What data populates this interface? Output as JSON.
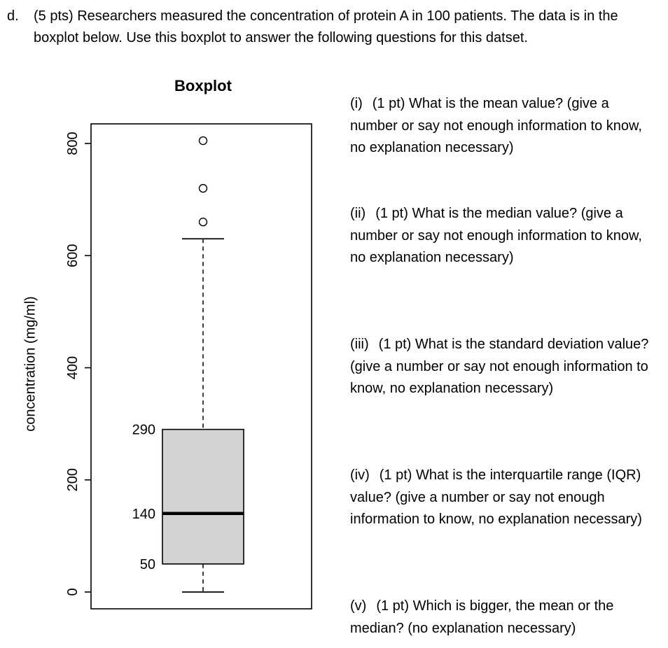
{
  "header": {
    "item_label": "d.",
    "text": "(5 pts) Researchers measured the concentration of protein A in 100 patients. The data is in the boxplot below. Use this boxplot to answer the following questions for this datset."
  },
  "questions": [
    {
      "label": "(i)",
      "text": "(1 pt) What is the mean value? (give a number or say not enough information to know, no explanation necessary)"
    },
    {
      "label": "(ii)",
      "text": "(1 pt) What is the median value? (give a number or say not enough information to know, no explanation necessary)"
    },
    {
      "label": "(iii)",
      "text": "(1 pt) What is the standard deviation value? (give a number or say not enough information to know, no explanation necessary)"
    },
    {
      "label": "(iv)",
      "text": "(1 pt) What is the interquartile range (IQR) value? (give a number or say not enough information to know, no explanation necessary)"
    },
    {
      "label": "(v)",
      "text": "(1 pt) Which is bigger, the mean or the median? (no explanation necessary)"
    }
  ],
  "chart_data": {
    "type": "boxplot",
    "title": "Boxplot",
    "ylabel": "concentration (mg/ml)",
    "yticks": [
      0,
      200,
      400,
      600,
      800
    ],
    "ylim": [
      -30,
      835
    ],
    "box": {
      "whisker_low": 0,
      "q1": 50,
      "median": 140,
      "q3": 290,
      "whisker_high": 630
    },
    "outliers": [
      660,
      720,
      805
    ],
    "annotations": [
      {
        "value": 290,
        "label": "290"
      },
      {
        "value": 140,
        "label": "140"
      },
      {
        "value": 50,
        "label": "50"
      }
    ],
    "box_fill": "#d3d3d3",
    "stroke_color": "#000000"
  }
}
